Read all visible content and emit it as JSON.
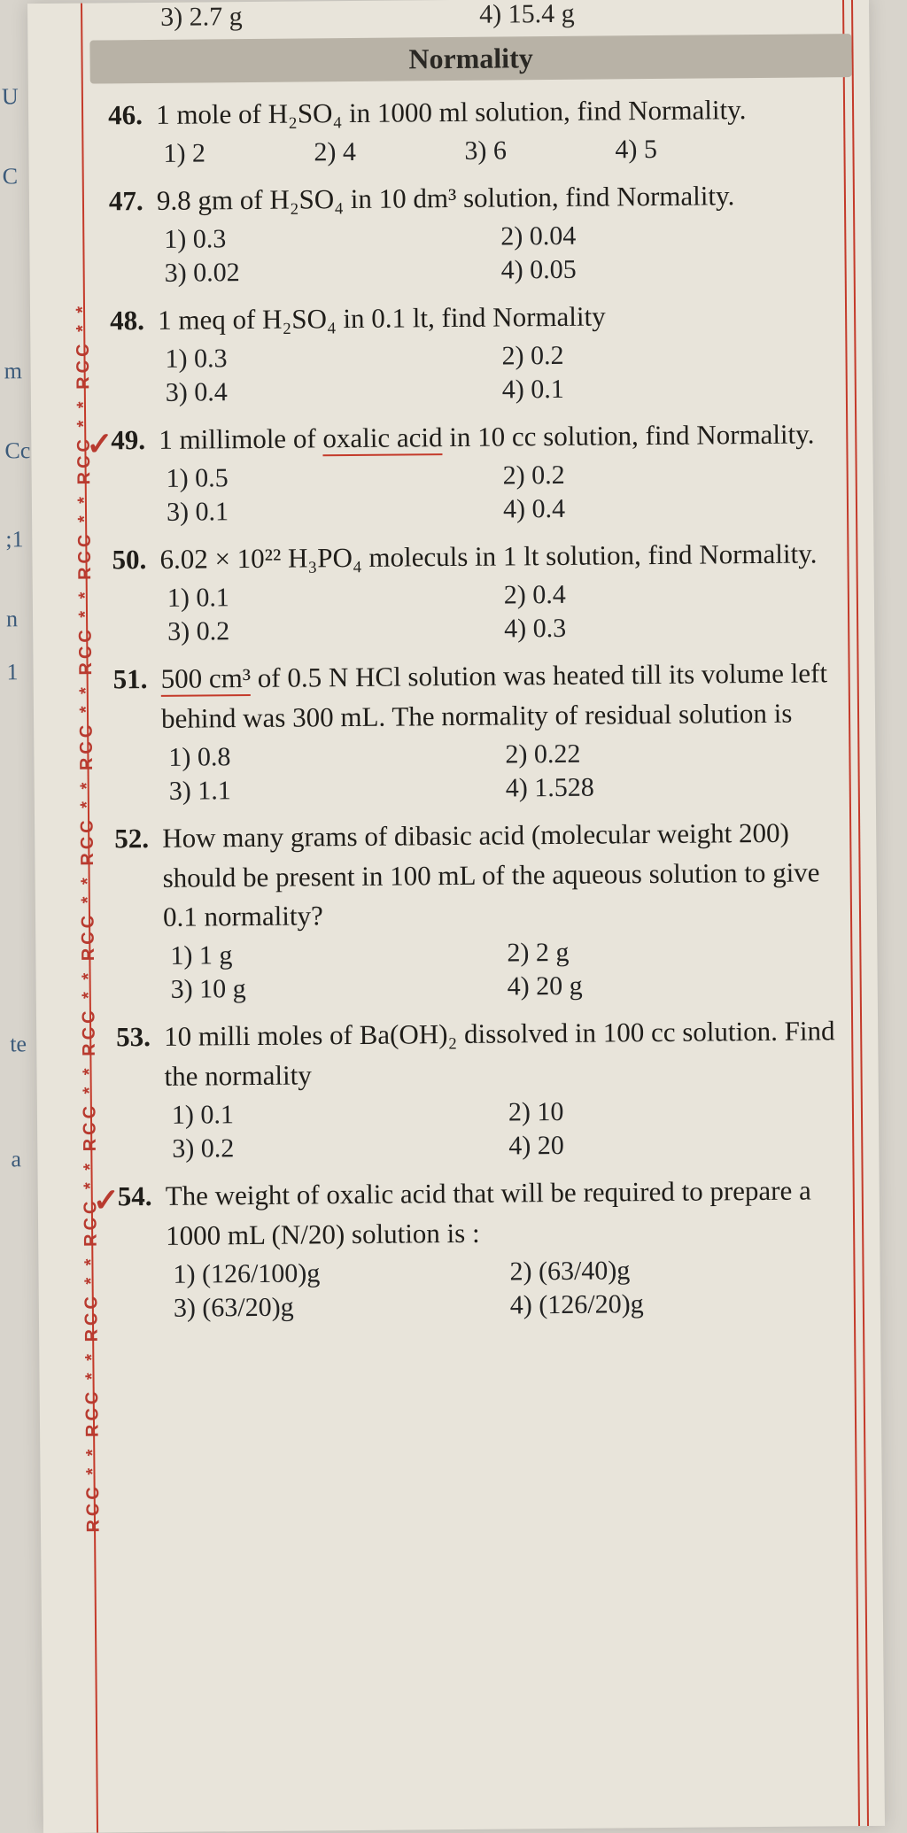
{
  "top_options": {
    "a": "3) 2.7 g",
    "b": "4) 15.4 g"
  },
  "section_title": "Normality",
  "watermark_text": "RCC * * RCC * * RCC * * RCC * * RCC * * RCC * * RCC * * RCC * * RCC * * RCC * * RCC * * RCC * * RCC * *",
  "questions": [
    {
      "num": "46.",
      "text": "1 mole of H₂SO₄ in 1000 ml solution, find Normality.",
      "layout": "four-col",
      "opts": [
        [
          "1) 2",
          "2) 4",
          "3) 6",
          "4) 5"
        ]
      ]
    },
    {
      "num": "47.",
      "text": "9.8 gm of H₂SO₄ in 10 dm³ solution, find Normality.",
      "layout": "two-col",
      "opts": [
        [
          "1) 0.3",
          "2) 0.04"
        ],
        [
          "3) 0.02",
          "4) 0.05"
        ]
      ]
    },
    {
      "num": "48.",
      "text": "1 meq of H₂SO₄ in 0.1 lt, find Normality",
      "layout": "two-col",
      "opts": [
        [
          "1) 0.3",
          "2) 0.2"
        ],
        [
          "3) 0.4",
          "4) 0.1"
        ]
      ]
    },
    {
      "num": "49.",
      "text_a": "1 millimole of ",
      "text_u": "oxalic acid",
      "text_b": " in 10 cc solution, find Normality.",
      "layout": "two-col",
      "checkmark": true,
      "opts": [
        [
          "1) 0.5",
          "2) 0.2"
        ],
        [
          "3) 0.1",
          "4) 0.4"
        ]
      ]
    },
    {
      "num": "50.",
      "text": "6.02 × 10²² H₃PO₄ moleculs in 1 lt solution, find Normality.",
      "layout": "two-col",
      "opts": [
        [
          "1) 0.1",
          "2) 0.4"
        ],
        [
          "3) 0.2",
          "4) 0.3"
        ]
      ]
    },
    {
      "num": "51.",
      "text_a": "",
      "text_u": "500 cm³",
      "text_b": " of 0.5 N HCl solution was heated till its volume left behind was 300 mL. The normality of residual solution is",
      "layout": "two-col",
      "opts": [
        [
          "1) 0.8",
          "2) 0.22"
        ],
        [
          "3) 1.1",
          "4) 1.528"
        ]
      ]
    },
    {
      "num": "52.",
      "text": "How many grams of dibasic acid (molecular weight 200) should be present in 100 mL of the aqueous solution to give 0.1 normality?",
      "layout": "two-col",
      "opts": [
        [
          "1) 1 g",
          "2) 2 g"
        ],
        [
          "3) 10 g",
          "4) 20 g"
        ]
      ]
    },
    {
      "num": "53.",
      "text": "10 milli moles of Ba(OH)₂ dissolved in 100 cc solution. Find the normality",
      "layout": "two-col",
      "opts": [
        [
          "1) 0.1",
          "2) 10"
        ],
        [
          "3) 0.2",
          "4) 20"
        ]
      ]
    },
    {
      "num": "54.",
      "text": "The weight of oxalic acid that will be required to prepare a 1000 mL (N/20) solution is :",
      "layout": "two-col",
      "checkmark": true,
      "opts": [
        [
          "1) (126/100)g",
          "2) (63/40)g"
        ],
        [
          "3) (63/20)g",
          "4) (126/20)g"
        ]
      ]
    }
  ],
  "margin_notes": [
    "U",
    "C",
    "m",
    "Cc",
    ";1",
    "n",
    "1",
    "te",
    "a",
    "[",
    "[",
    "[",
    ";",
    ")"
  ]
}
